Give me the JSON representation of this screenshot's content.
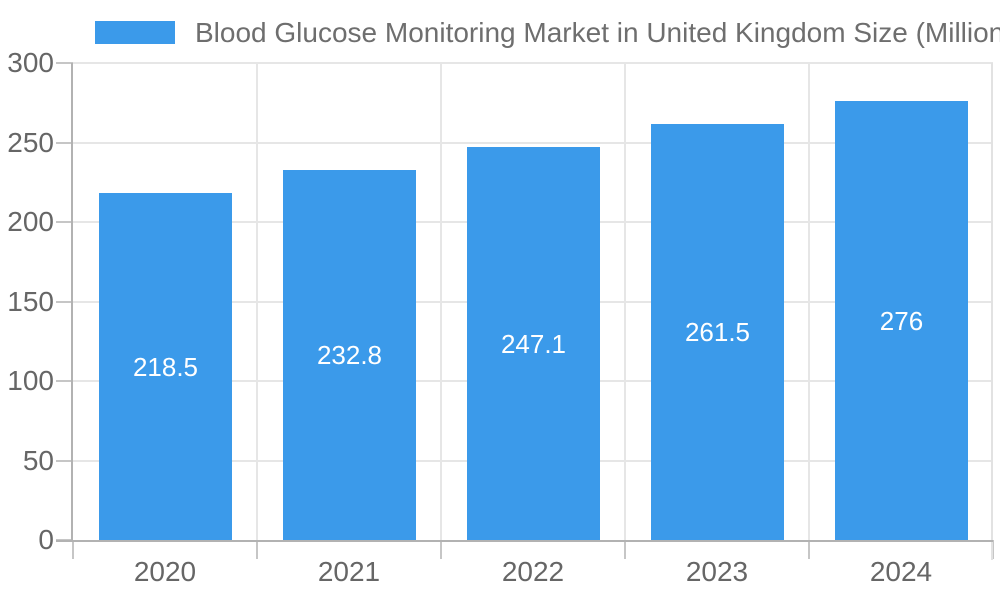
{
  "chart_data": {
    "type": "bar",
    "title": "Blood Glucose Monitoring Market in United Kingdom Size (Million)",
    "categories": [
      "2020",
      "2021",
      "2022",
      "2023",
      "2024"
    ],
    "values": [
      218.5,
      232.8,
      247.1,
      261.5,
      276
    ],
    "value_labels": [
      "218.5",
      "232.8",
      "247.1",
      "261.5",
      "276"
    ],
    "xlabel": "",
    "ylabel": "",
    "ylim": [
      0,
      300
    ],
    "y_ticks": [
      0,
      50,
      100,
      150,
      200,
      250,
      300
    ],
    "grid": true,
    "legend_position": "top-left",
    "colors": {
      "bar": "#3b9aea",
      "bar_label": "#ffffff",
      "axis_text": "#666666",
      "legend_text": "#6e6e6e",
      "axis_line": "#b2b2b2",
      "gridline": "#e6e6e6",
      "tick": "#c6c6c6",
      "plot_right_border": "#e2e2e2",
      "background": "#ffffff"
    }
  }
}
